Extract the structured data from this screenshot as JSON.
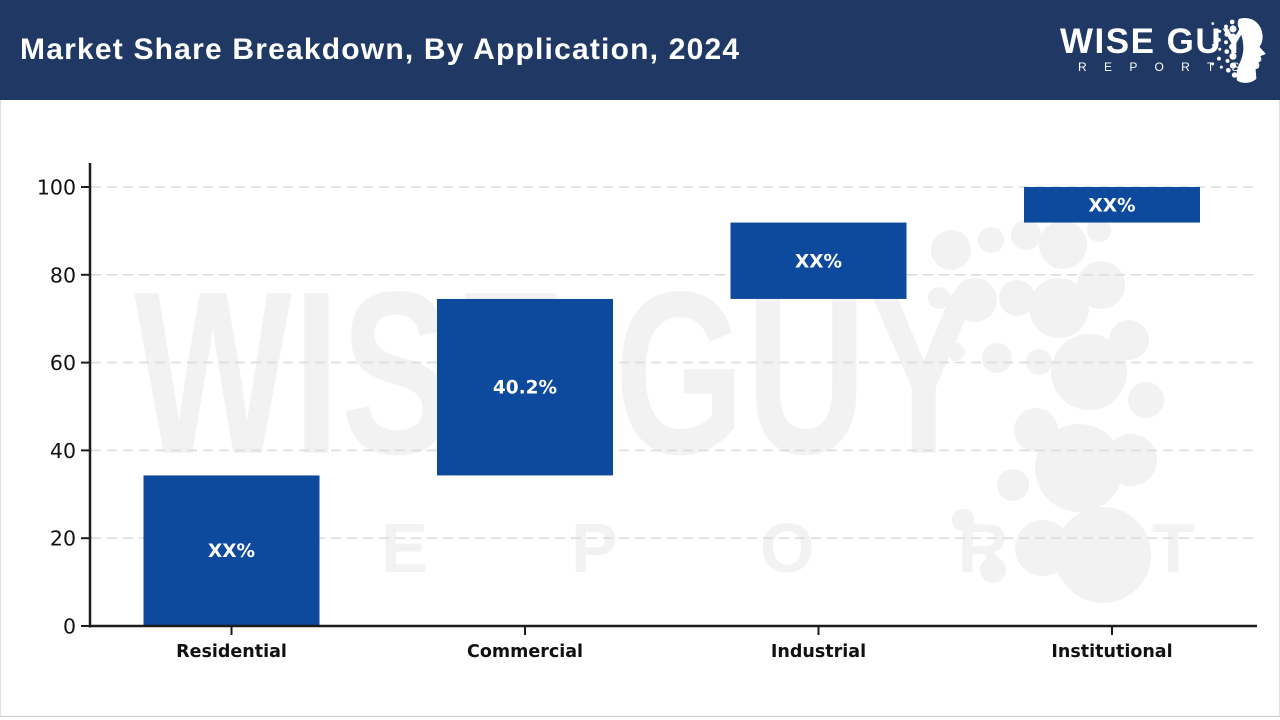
{
  "header": {
    "title": "Market Share Breakdown, By Application, 2024",
    "logo": {
      "wordmark": "WISE GUY",
      "subtext": "R E P O R T S"
    }
  },
  "watermark": {
    "wordmark": "WISE GUY",
    "subtext": "R E P O R T S"
  },
  "colors": {
    "header_bg": "#203864",
    "bar_fill": "#0d4a9e",
    "bar_label": "#ffffff",
    "axis": "#1c1c1c",
    "tick_label": "#111111",
    "gridline": "#dcdcdc",
    "watermark": "#f2f2f2",
    "page_border": "#cccccc"
  },
  "chart_data": {
    "type": "bar",
    "subtype": "floating-waterfall",
    "title": "Market Share Breakdown, By Application, 2024",
    "categories": [
      "Residential",
      "Commercial",
      "Industrial",
      "Institutional"
    ],
    "segments": [
      {
        "category": "Residential",
        "start": 0,
        "end": 34.3,
        "value_label": "XX%"
      },
      {
        "category": "Commercial",
        "start": 34.3,
        "end": 74.5,
        "value_label": "40.2%"
      },
      {
        "category": "Industrial",
        "start": 74.5,
        "end": 91.9,
        "value_label": "XX%"
      },
      {
        "category": "Institutional",
        "start": 91.9,
        "end": 100,
        "value_label": "XX%"
      }
    ],
    "xlabel": "",
    "ylabel": "",
    "yticks": [
      0,
      20,
      40,
      60,
      80,
      100
    ],
    "ylim": [
      0,
      105
    ],
    "grid": "horizontal-dashed",
    "legend": "none"
  }
}
